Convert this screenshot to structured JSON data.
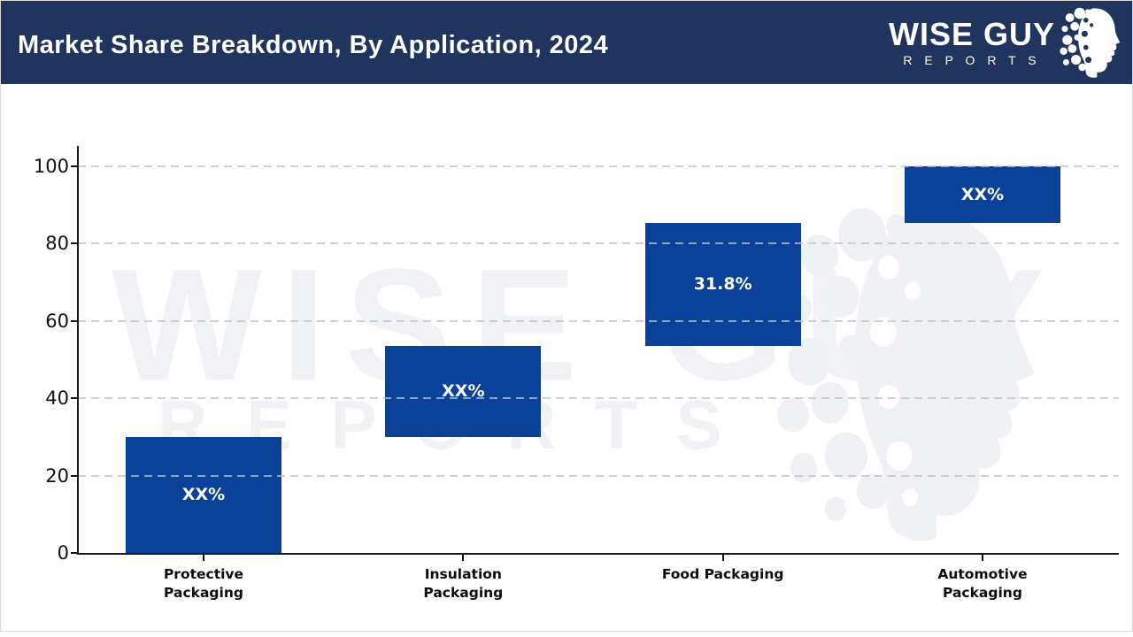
{
  "header": {
    "title": "Market Share Breakdown, By Application, 2024",
    "logo": {
      "wordmark": "WISE GUY",
      "subtext": "R E P O R T S"
    }
  },
  "watermark": {
    "wordmark": "WISE GUY",
    "subtext": "R E P O R T S"
  },
  "chart_data": {
    "type": "bar",
    "subtype": "waterfall",
    "title": "Market Share Breakdown, By Application, 2024",
    "categories": [
      "Protective Packaging",
      "Insulation Packaging",
      "Food Packaging",
      "Automotive Packaging"
    ],
    "category_lines": [
      [
        "Protective",
        "Packaging"
      ],
      [
        "Insulation",
        "Packaging"
      ],
      [
        "Food Packaging"
      ],
      [
        "Automotive",
        "Packaging"
      ]
    ],
    "bars": [
      {
        "category": "Protective Packaging",
        "start": 0,
        "end": 30,
        "label": "XX%"
      },
      {
        "category": "Insulation Packaging",
        "start": 30,
        "end": 53.5,
        "label": "XX%"
      },
      {
        "category": "Food Packaging",
        "start": 53.5,
        "end": 85.3,
        "label": "31.8%"
      },
      {
        "category": "Automotive Packaging",
        "start": 85.3,
        "end": 100,
        "label": "XX%"
      }
    ],
    "yticks": [
      0,
      20,
      40,
      60,
      80,
      100
    ],
    "ylim": [
      0,
      105
    ],
    "grid": "horizontal-dashed",
    "legend": "none",
    "xlabel": "",
    "ylabel": ""
  },
  "colors": {
    "header_bg": "#1f355e",
    "bar_blue": "#0a429a",
    "bar_label": "#ffffff",
    "watermark_gray": "#f1f2f5",
    "grid_gray": "#c8cdd6",
    "axis_black": "#1a1a1a",
    "frame_gray": "#d9d9d9"
  }
}
